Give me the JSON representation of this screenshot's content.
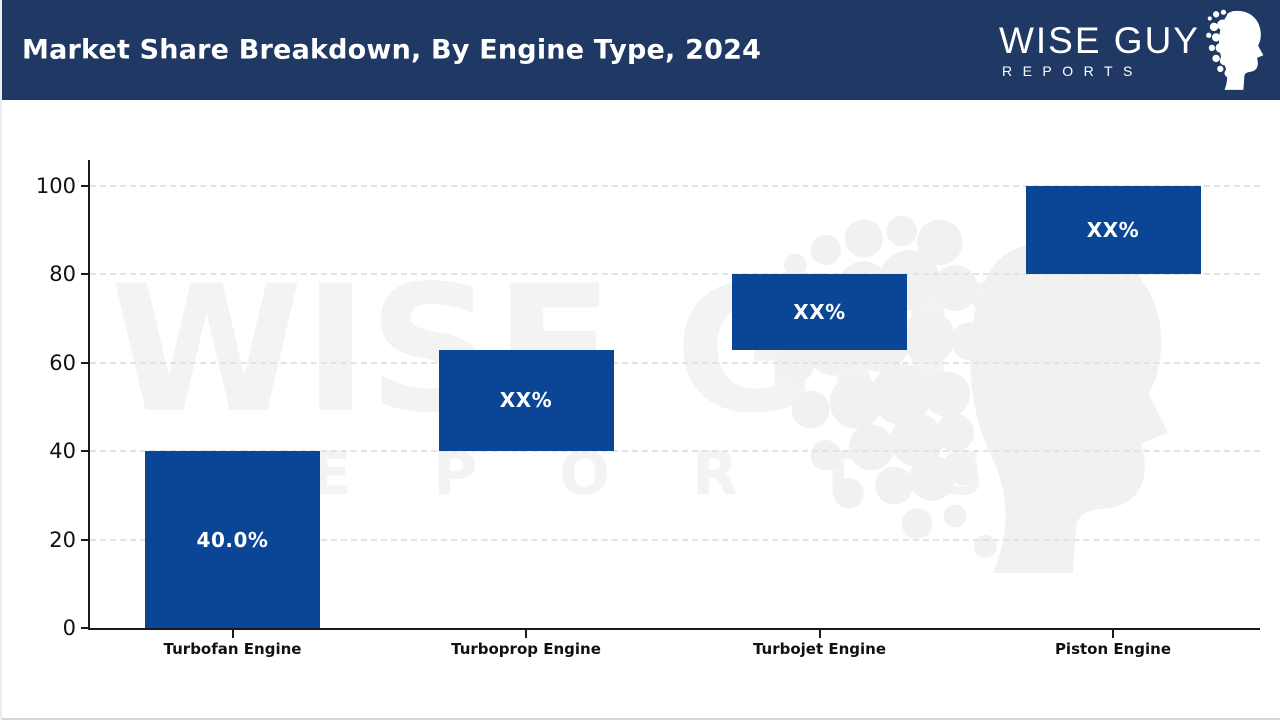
{
  "header": {
    "title": "Market Share Breakdown, By Engine Type, 2024",
    "logo": {
      "wordmark": "WISE GUY",
      "subtext": "REPORTS"
    }
  },
  "watermark": {
    "wordmark": "WISE GUY",
    "subtext": "REPORTS"
  },
  "colors": {
    "header_bg": "#1f3864",
    "bar": "#0a4596",
    "grid": "#e3e3e3",
    "axis": "#1a1a1a",
    "watermark": "#f3f3f3",
    "title_text": "#ffffff",
    "bar_label_text": "#ffffff"
  },
  "chart_data": {
    "type": "bar",
    "subtype": "waterfall",
    "title": "Market Share Breakdown, By Engine Type, 2024",
    "categories": [
      "Turbofan Engine",
      "Turboprop Engine",
      "Turbojet Engine",
      "Piston Engine"
    ],
    "segments": [
      {
        "category": "Turbofan Engine",
        "start": 0,
        "end": 40,
        "label": "40.0%"
      },
      {
        "category": "Turboprop Engine",
        "start": 40,
        "end": 63,
        "label": "XX%"
      },
      {
        "category": "Turbojet Engine",
        "start": 63,
        "end": 80,
        "label": "XX%"
      },
      {
        "category": "Piston Engine",
        "start": 80,
        "end": 100,
        "label": "XX%"
      }
    ],
    "xlabel": "",
    "ylabel": "",
    "yticks": [
      0,
      20,
      40,
      60,
      80,
      100
    ],
    "ylim": [
      0,
      105
    ],
    "grid": "horizontal-dashed",
    "legend": "none"
  }
}
